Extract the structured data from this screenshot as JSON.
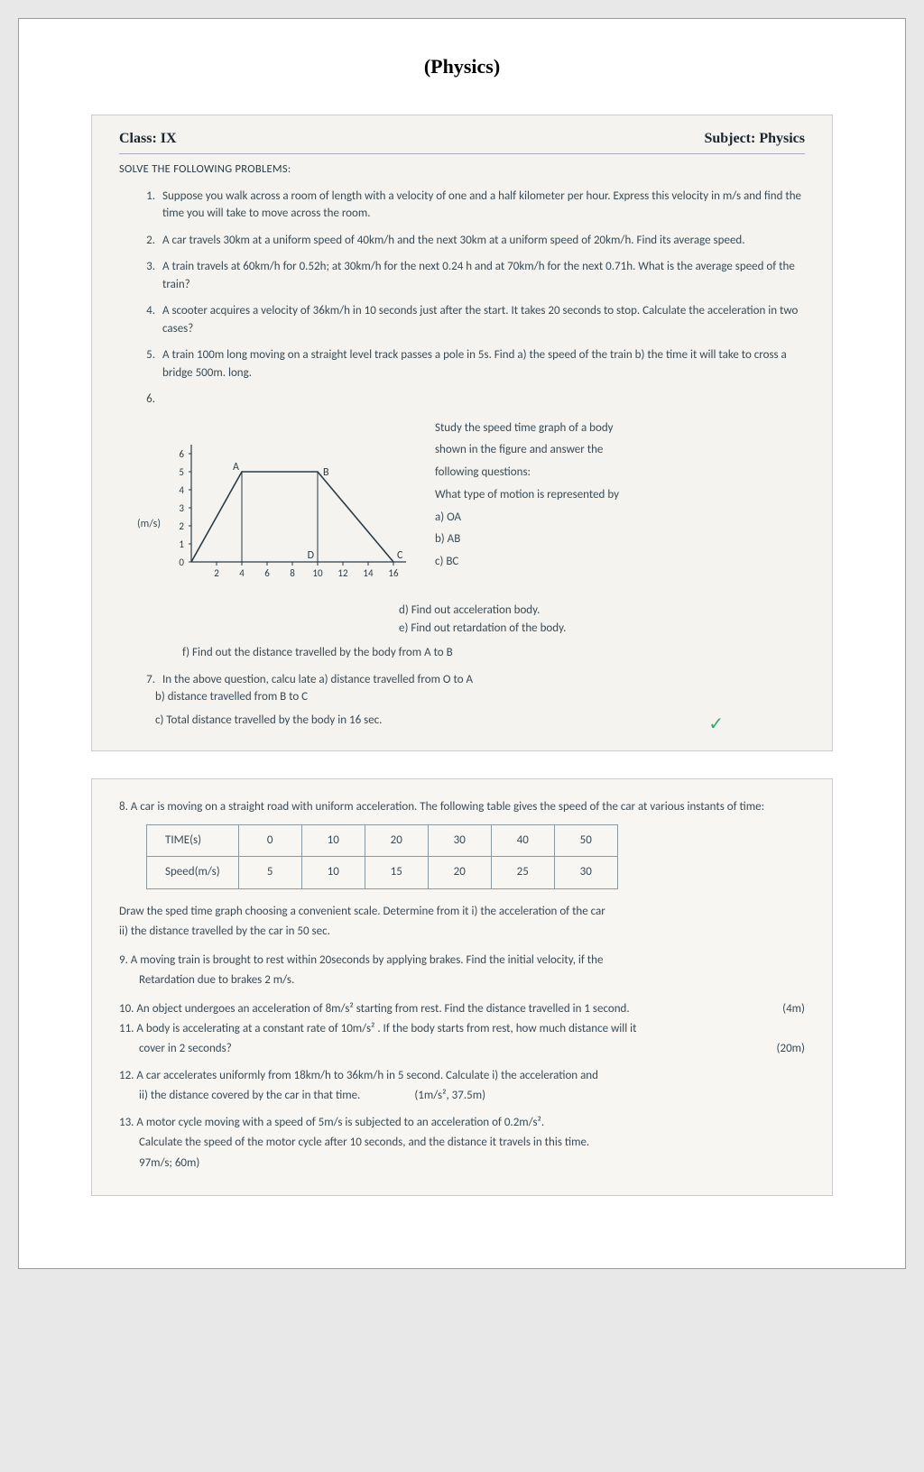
{
  "title": "(Physics)",
  "header": {
    "class": "Class: IX",
    "subject": "Subject: Physics"
  },
  "instruction": "SOLVE THE FOLLOWING PROBLEMS:",
  "questions": [
    {
      "n": "1.",
      "t": "Suppose you walk across a room of length with a velocity of one and a half kilometer per hour. Express this velocity in m/s and find the time you will take to move across the room."
    },
    {
      "n": "2.",
      "t": "A car travels 30km at a uniform speed of 40km/h and the next 30km at a uniform speed of 20km/h. Find its average speed."
    },
    {
      "n": "3.",
      "t": "A  train travels at 60km/h for 0.52h; at 30km/h for the next 0.24 h and at 70km/h for the next 0.71h. What is the average speed of the train?"
    },
    {
      "n": "4.",
      "t": "A scooter acquires a velocity of 36km/h in 10 seconds just after the start. It takes 20 seconds to stop. Calculate the acceleration in two cases?"
    },
    {
      "n": "5.",
      "t": "A train 100m long moving  on a straight level track passes a pole in 5s. Find a) the speed of the train  b) the time it will take to cross a bridge 500m. long."
    }
  ],
  "q6": {
    "n": "6.",
    "t": ""
  },
  "graph": {
    "ylabel": "(m/s)",
    "yticks": [
      "0",
      "1",
      "2",
      "3",
      "4",
      "5",
      "6"
    ],
    "xticks": [
      "2",
      "4",
      "6",
      "8",
      "10",
      "12",
      "14",
      "16"
    ],
    "points": {
      "O": {
        "x": 0,
        "y": 0
      },
      "A": {
        "x": 4,
        "y": 5
      },
      "B": {
        "x": 10,
        "y": 5
      },
      "D": {
        "x": 10,
        "y": 0
      },
      "C": {
        "x": 16,
        "y": 0
      }
    },
    "line_color": "#2a3a45",
    "axis_color": "#2a3a45",
    "tick_fontsize": 11,
    "label_fontsize": 12
  },
  "graph_questions": {
    "intro1": "Study the speed time graph of a body",
    "intro2": "shown in the figure and answer the",
    "intro3": "following questions:",
    "q": "What type of motion is represented  by",
    "a": "a)  OA",
    "b": "b)  AB",
    "c": "c)  BC",
    "d": "d) Find out acceleration body.",
    "e": "e) Find out retardation of the body.",
    "f": "f) Find out the distance travelled by the body from A to B"
  },
  "q7": {
    "n": "7.",
    "t": "In the above question, calcu late   a) distance travelled from O to A",
    "b": "b)   distance travelled from B to C",
    "c": "c)  Total  distance travelled by the body in 16 sec."
  },
  "q8": {
    "intro": "8. A car is moving on a straight road with uniform acceleration. The following table gives the speed of   the car at various instants of time:",
    "table": {
      "head": [
        "TIME(s)",
        "0",
        "10",
        "20",
        "30",
        "40",
        "50"
      ],
      "row": [
        "Speed(m/s)",
        "5",
        "10",
        "15",
        "20",
        "25",
        "30"
      ]
    },
    "after1": "Draw the sped time graph choosing a convenient scale. Determine from it   i) the acceleration of the car",
    "after2": "ii) the distance travelled by the car in 50 sec."
  },
  "q9": {
    "l1": "9.  A moving train is brought to rest within 20seconds by applying brakes. Find the initial velocity, if the",
    "l2": "Retardation due to brakes 2 m/s."
  },
  "q10": {
    "t": "10. An object undergoes an acceleration of 8m/s²  starting from rest. Find the distance travelled in 1 second.",
    "m": "(4m)"
  },
  "q11": {
    "l1": "11.  A body is accelerating at a constant rate of 10m/s² . If the body starts from rest, how much distance will it",
    "l2": "cover in 2 seconds?",
    "m": "(20m)"
  },
  "q12": {
    "l1": "12. A car accelerates uniformly from 18km/h to 36km/h in 5 second. Calculate i) the acceleration and",
    "l2": "ii) the distance covered by the car in that time.",
    "ans": "(1m/s², 37.5m)"
  },
  "q13": {
    "l1": "13. A motor cycle moving with a speed of 5m/s is subjected to an acceleration of 0.2m/s².",
    "l2": "Calculate the speed of the motor cycle after 10 seconds, and the distance it travels in this time.",
    "l3": "97m/s;  60m)"
  },
  "signature": "✓"
}
